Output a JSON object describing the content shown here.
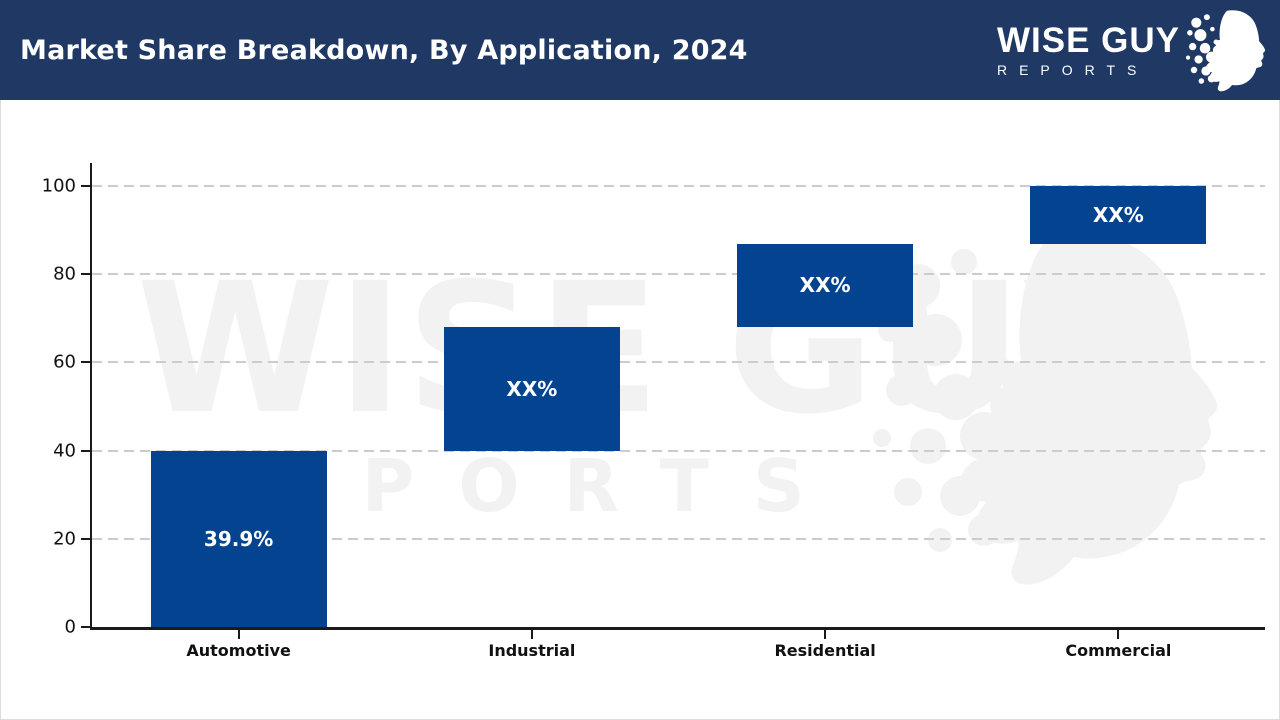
{
  "header": {
    "title": "Market Share Breakdown, By Application, 2024",
    "logo": {
      "line1": "WISE GUY",
      "line2": "REPORTS"
    }
  },
  "watermark": {
    "line1": "WISE GUY",
    "line2": "REPORTS"
  },
  "chart_data": {
    "type": "bar",
    "subtype": "waterfall",
    "title": "Market Share Breakdown, By Application, 2024",
    "categories": [
      "Automotive",
      "Industrial",
      "Residential",
      "Commercial"
    ],
    "series": [
      {
        "name": "Market Share",
        "segments": [
          {
            "category": "Automotive",
            "start": 0,
            "end": 39.9,
            "label": "39.9%"
          },
          {
            "category": "Industrial",
            "start": 39.9,
            "end": 68.1,
            "label": "XX%"
          },
          {
            "category": "Residential",
            "start": 68.1,
            "end": 86.9,
            "label": "XX%"
          },
          {
            "category": "Commercial",
            "start": 86.9,
            "end": 100,
            "label": "XX%"
          }
        ]
      }
    ],
    "xlabel": "",
    "ylabel": "",
    "yticks": [
      0,
      20,
      40,
      60,
      80,
      100
    ],
    "ylim": [
      0,
      105.2
    ],
    "grid": "horizontal-dashed",
    "legend": "none",
    "colors": {
      "bar": "#04438f",
      "bar_label": "#ffffff",
      "header_bg": "#1f3864",
      "axis": "#1a1a1a",
      "gridline": "#cccccc",
      "watermark": "#f2f2f2"
    }
  }
}
